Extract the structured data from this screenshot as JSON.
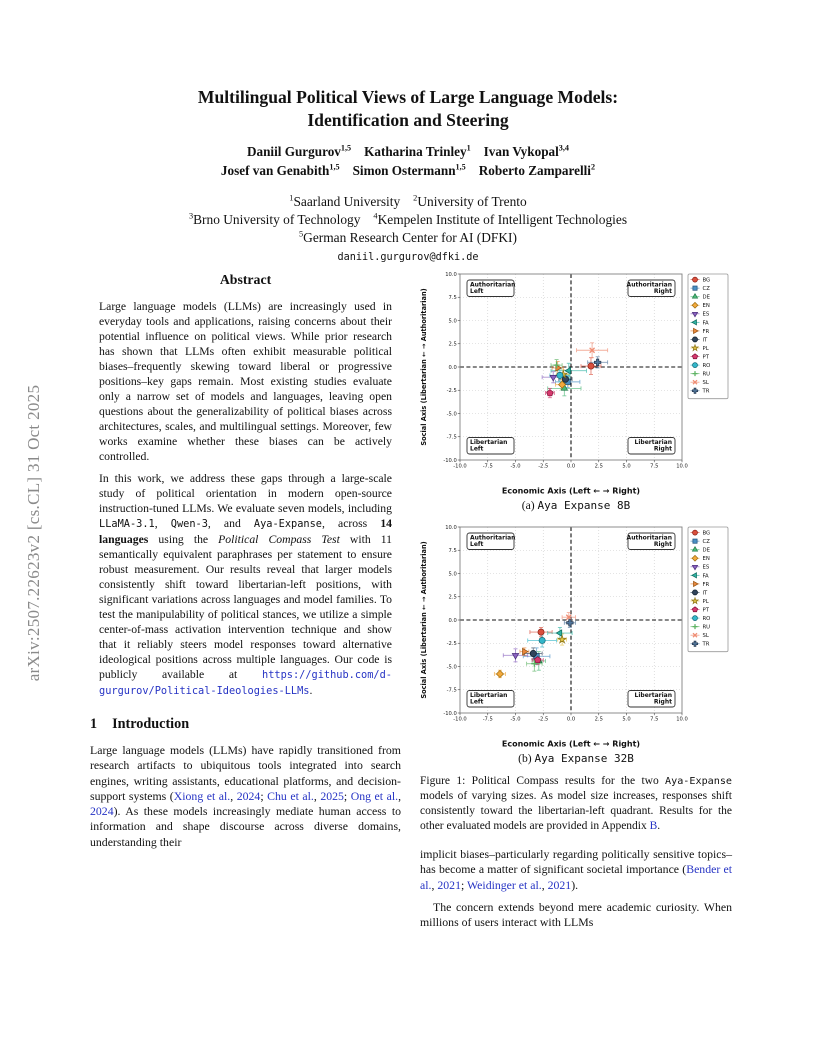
{
  "watermark": "arXiv:2507.22623v2  [cs.CL]  31 Oct 2025",
  "header": {
    "title_lines": [
      "Multilingual Political Views of Large Language Models:",
      "Identification and Steering"
    ],
    "author_rows": [
      [
        {
          "t": "Daniil Gurgurov",
          "s": "p"
        },
        {
          "t": "1,5",
          "s": "sup"
        },
        {
          "t": "",
          "s": "gap"
        },
        {
          "t": "Katharina Trinley",
          "s": "p"
        },
        {
          "t": "1",
          "s": "sup"
        },
        {
          "t": "",
          "s": "gap"
        },
        {
          "t": "Ivan Vykopal",
          "s": "p"
        },
        {
          "t": "3,4",
          "s": "sup"
        }
      ],
      [
        {
          "t": "Josef van Genabith",
          "s": "p"
        },
        {
          "t": "1,5",
          "s": "sup"
        },
        {
          "t": "",
          "s": "gap"
        },
        {
          "t": "Simon Ostermann",
          "s": "p"
        },
        {
          "t": "1,5",
          "s": "sup"
        },
        {
          "t": "",
          "s": "gap"
        },
        {
          "t": "Roberto Zamparelli",
          "s": "p"
        },
        {
          "t": "2",
          "s": "sup"
        }
      ]
    ],
    "affil_rows": [
      [
        {
          "t": "1",
          "s": "sup"
        },
        {
          "t": "Saarland University",
          "s": "p"
        },
        {
          "t": "",
          "s": "gap"
        },
        {
          "t": "2",
          "s": "sup"
        },
        {
          "t": "University of Trento",
          "s": "p"
        }
      ],
      [
        {
          "t": "3",
          "s": "sup"
        },
        {
          "t": "Brno University of Technology",
          "s": "p"
        },
        {
          "t": "",
          "s": "gap"
        },
        {
          "t": "4",
          "s": "sup"
        },
        {
          "t": "Kempelen Institute of Intelligent Technologies",
          "s": "p"
        }
      ],
      [
        {
          "t": "5",
          "s": "sup"
        },
        {
          "t": "German Research Center for AI (DFKI)",
          "s": "p"
        }
      ]
    ],
    "email": "daniil.gurgurov@dfki.de"
  },
  "left_column": {
    "abstract_heading": "Abstract",
    "abstract_paragraphs": [
      [
        {
          "t": "Large language models (LLMs) are increasingly used in everyday tools and applications, raising concerns about their potential influence on political views. While prior research has shown that LLMs often exhibit measurable political biases–frequently skewing toward liberal or progressive positions–key gaps remain. Most existing studies evaluate only a narrow set of models and languages, leaving open questions about the generalizability of political biases across architectures, scales, and multilingual settings. Moreover, few works examine whether these biases can be actively controlled.",
          "s": "p"
        }
      ],
      [
        {
          "t": "In this work, we address these gaps through a large-scale study of political orientation in modern open-source instruction-tuned LLMs. We evaluate seven models, including ",
          "s": "p"
        },
        {
          "t": "LLaMA-3.1",
          "s": "m"
        },
        {
          "t": ", ",
          "s": "p"
        },
        {
          "t": "Qwen-3",
          "s": "m"
        },
        {
          "t": ", and ",
          "s": "p"
        },
        {
          "t": "Aya-Expanse",
          "s": "m"
        },
        {
          "t": ", across ",
          "s": "p"
        },
        {
          "t": "14 languages",
          "s": "b"
        },
        {
          "t": " using the ",
          "s": "p"
        },
        {
          "t": "Political Compass Test",
          "s": "i"
        },
        {
          "t": " with 11 semantically equivalent paraphrases per statement to ensure robust measurement. Our results reveal that larger models consistently shift toward libertarian-left positions, with significant variations across languages and model families. To test the manipulability of political stances, we utilize a simple center-of-mass activation intervention technique and show that it reliably steers model responses toward alternative ideological positions across multiple languages. Our code is publicly available at ",
          "s": "p"
        },
        {
          "t": "https://github.com/d-gurgurov/Political-Ideologies-LLMs",
          "s": "ma"
        },
        {
          "t": ".",
          "s": "p"
        }
      ]
    ],
    "section1_number": "1",
    "section1_title": "Introduction",
    "intro_paragraphs": [
      [
        {
          "t": "Large language models (LLMs) have rapidly transitioned from research artifacts to ubiquitous tools integrated into search engines, writing assistants, educational platforms, and decision-support systems (",
          "s": "p"
        },
        {
          "t": "Xiong et al.",
          "s": "a"
        },
        {
          "t": ", ",
          "s": "p"
        },
        {
          "t": "2024",
          "s": "a"
        },
        {
          "t": "; ",
          "s": "p"
        },
        {
          "t": "Chu et al.",
          "s": "a"
        },
        {
          "t": ", ",
          "s": "p"
        },
        {
          "t": "2025",
          "s": "a"
        },
        {
          "t": "; ",
          "s": "p"
        },
        {
          "t": "Ong et al.",
          "s": "a"
        },
        {
          "t": ", ",
          "s": "p"
        },
        {
          "t": "2024",
          "s": "a"
        },
        {
          "t": "). As these models increasingly mediate human access to information and shape discourse across diverse domains, understanding their",
          "s": "p"
        }
      ]
    ]
  },
  "right_column": {
    "paragraphs": [
      [
        {
          "t": "implicit biases–particularly regarding politically sensitive topics–has become a matter of significant societal importance (",
          "s": "p"
        },
        {
          "t": "Bender et al.",
          "s": "a"
        },
        {
          "t": ", ",
          "s": "p"
        },
        {
          "t": "2021",
          "s": "a"
        },
        {
          "t": "; ",
          "s": "p"
        },
        {
          "t": "Weidinger et al.",
          "s": "a"
        },
        {
          "t": ", ",
          "s": "p"
        },
        {
          "t": "2021",
          "s": "a"
        },
        {
          "t": ").",
          "s": "p"
        }
      ],
      [
        {
          "t": "The concern extends beyond mere academic curiosity. When millions of users interact with LLMs",
          "s": "p"
        }
      ]
    ]
  },
  "figure": {
    "subcaption_a": [
      {
        "t": "(a) ",
        "s": "p"
      },
      {
        "t": "Aya Expanse 8B",
        "s": "m"
      }
    ],
    "subcaption_b": [
      {
        "t": "(b) ",
        "s": "p"
      },
      {
        "t": "Aya Expanse 32B",
        "s": "m"
      }
    ],
    "caption": [
      {
        "t": "Figure 1: Political Compass results for the two ",
        "s": "p"
      },
      {
        "t": "Aya-Expanse",
        "s": "m"
      },
      {
        "t": " models of varying sizes. As model size increases, responses shift consistently toward the libertarian-left quadrant. Results for the other evaluated models are provided in Appendix ",
        "s": "p"
      },
      {
        "t": "B",
        "s": "a"
      },
      {
        "t": ".",
        "s": "p"
      }
    ]
  },
  "chart_data": [
    {
      "type": "scatter",
      "name": "Aya Expanse 8B",
      "xlabel": "Economic Axis (Left ← → Right)",
      "ylabel": "Social Axis (Libertarian ← → Authoritarian)",
      "xlim": [
        -10,
        10
      ],
      "ylim": [
        -10,
        10
      ],
      "ticks": [
        -10,
        -7.5,
        -5,
        -2.5,
        0,
        2.5,
        5,
        7.5,
        10
      ],
      "grid": true,
      "legend_position": "right-outside",
      "quadrant_labels": [
        {
          "pos": "tl",
          "lines": [
            "Authoritarian",
            "Left"
          ]
        },
        {
          "pos": "tr",
          "lines": [
            "Authoritarian",
            "Right"
          ]
        },
        {
          "pos": "bl",
          "lines": [
            "Libertarian",
            "Left"
          ]
        },
        {
          "pos": "br",
          "lines": [
            "Libertarian",
            "Right"
          ]
        }
      ],
      "series": [
        {
          "label": "BG",
          "marker": "circle",
          "color": "#d94f3d",
          "edge": "#8c2016",
          "x": 1.8,
          "y": 0.1,
          "xerr": 0.9,
          "yerr": 0.9
        },
        {
          "label": "CZ",
          "marker": "square",
          "color": "#4a90c4",
          "edge": "#1d4f7a",
          "x": -0.3,
          "y": -1.6,
          "xerr": 1.1,
          "yerr": 0.6
        },
        {
          "label": "DE",
          "marker": "triangle-up",
          "color": "#4db878",
          "edge": "#1d7a45",
          "x": -0.6,
          "y": -2.3,
          "xerr": 1.5,
          "yerr": 0.8
        },
        {
          "label": "EN",
          "marker": "diamond",
          "color": "#f2a93d",
          "edge": "#9c6a0a",
          "x": -0.8,
          "y": -1.9,
          "xerr": 0.6,
          "yerr": 0.5
        },
        {
          "label": "ES",
          "marker": "triangle-down",
          "color": "#8a63c0",
          "edge": "#4a2d78",
          "x": -1.6,
          "y": -1.1,
          "xerr": 1.0,
          "yerr": 0.6
        },
        {
          "label": "FA",
          "marker": "triangle-left",
          "color": "#2fb3a3",
          "edge": "#0e685c",
          "x": -0.2,
          "y": -0.4,
          "xerr": 1.6,
          "yerr": 0.8
        },
        {
          "label": "FR",
          "marker": "triangle-right",
          "color": "#e8873c",
          "edge": "#94500e",
          "x": -1.2,
          "y": -0.1,
          "xerr": 0.5,
          "yerr": 0.7
        },
        {
          "label": "IT",
          "marker": "octagon",
          "color": "#31455c",
          "edge": "#10202e",
          "x": -0.5,
          "y": -1.3,
          "xerr": 0.6,
          "yerr": 0.5
        },
        {
          "label": "PL",
          "marker": "star",
          "color": "#e3c44a",
          "edge": "#8a7210",
          "x": -0.7,
          "y": -0.8,
          "xerr": 0.6,
          "yerr": 0.5
        },
        {
          "label": "PT",
          "marker": "pentagon",
          "color": "#d63a6e",
          "edge": "#801238",
          "x": -1.9,
          "y": -2.8,
          "xerr": 0.4,
          "yerr": 0.5
        },
        {
          "label": "RO",
          "marker": "circle",
          "color": "#33b6c9",
          "edge": "#0f6a78",
          "x": -1.0,
          "y": -0.9,
          "xerr": 0.9,
          "yerr": 0.7
        },
        {
          "label": "RU",
          "marker": "plus",
          "color": "#5fb465",
          "edge": "#2e7a34",
          "x": -1.3,
          "y": 0.2,
          "xerr": 0.5,
          "yerr": 0.6
        },
        {
          "label": "SL",
          "marker": "x",
          "color": "#ef8d73",
          "edge": "#b04a30",
          "x": 1.9,
          "y": 1.8,
          "xerr": 1.4,
          "yerr": 0.8
        },
        {
          "label": "TR",
          "marker": "plus-filled",
          "color": "#52779c",
          "edge": "#24364d",
          "x": 2.4,
          "y": 0.5,
          "xerr": 0.9,
          "yerr": 0.6
        }
      ]
    },
    {
      "type": "scatter",
      "name": "Aya Expanse 32B",
      "xlabel": "Economic Axis (Left ← → Right)",
      "ylabel": "Social Axis (Libertarian ← → Authoritarian)",
      "xlim": [
        -10,
        10
      ],
      "ylim": [
        -10,
        10
      ],
      "ticks": [
        -10,
        -7.5,
        -5,
        -2.5,
        0,
        2.5,
        5,
        7.5,
        10
      ],
      "grid": true,
      "legend_position": "right-outside",
      "quadrant_labels": [
        {
          "pos": "tl",
          "lines": [
            "Authoritarian",
            "Left"
          ]
        },
        {
          "pos": "tr",
          "lines": [
            "Authoritarian",
            "Right"
          ]
        },
        {
          "pos": "bl",
          "lines": [
            "Libertarian",
            "Left"
          ]
        },
        {
          "pos": "br",
          "lines": [
            "Libertarian",
            "Right"
          ]
        }
      ],
      "series": [
        {
          "label": "BG",
          "marker": "circle",
          "color": "#d94f3d",
          "edge": "#8c2016",
          "x": -2.7,
          "y": -1.3,
          "xerr": 1.0,
          "yerr": 0.5
        },
        {
          "label": "CZ",
          "marker": "square",
          "color": "#4a90c4",
          "edge": "#1d4f7a",
          "x": -3.1,
          "y": -3.9,
          "xerr": 1.2,
          "yerr": 0.9
        },
        {
          "label": "DE",
          "marker": "triangle-up",
          "color": "#4db878",
          "edge": "#1d7a45",
          "x": -2.9,
          "y": -4.4,
          "xerr": 0.6,
          "yerr": 1.0
        },
        {
          "label": "EN",
          "marker": "diamond",
          "color": "#f2a93d",
          "edge": "#9c6a0a",
          "x": -6.4,
          "y": -5.8,
          "xerr": 0.5,
          "yerr": 0.4
        },
        {
          "label": "ES",
          "marker": "triangle-down",
          "color": "#8a63c0",
          "edge": "#4a2d78",
          "x": -5.0,
          "y": -3.8,
          "xerr": 1.1,
          "yerr": 0.7
        },
        {
          "label": "FA",
          "marker": "triangle-left",
          "color": "#2fb3a3",
          "edge": "#0e685c",
          "x": -1.0,
          "y": -1.4,
          "xerr": 1.1,
          "yerr": 0.6
        },
        {
          "label": "FR",
          "marker": "triangle-right",
          "color": "#e8873c",
          "edge": "#94500e",
          "x": -4.2,
          "y": -3.4,
          "xerr": 0.4,
          "yerr": 0.4
        },
        {
          "label": "IT",
          "marker": "octagon",
          "color": "#31455c",
          "edge": "#10202e",
          "x": -3.4,
          "y": -3.6,
          "xerr": 0.8,
          "yerr": 0.6
        },
        {
          "label": "PL",
          "marker": "star",
          "color": "#e3c44a",
          "edge": "#8a7210",
          "x": -0.8,
          "y": -2.1,
          "xerr": 0.4,
          "yerr": 0.6
        },
        {
          "label": "PT",
          "marker": "pentagon",
          "color": "#d63a6e",
          "edge": "#801238",
          "x": -3.0,
          "y": -4.3,
          "xerr": 0.5,
          "yerr": 0.5
        },
        {
          "label": "RO",
          "marker": "circle",
          "color": "#33b6c9",
          "edge": "#0f6a78",
          "x": -2.6,
          "y": -2.2,
          "xerr": 1.3,
          "yerr": 0.7
        },
        {
          "label": "RU",
          "marker": "plus",
          "color": "#5fb465",
          "edge": "#2e7a34",
          "x": -3.3,
          "y": -4.7,
          "xerr": 0.7,
          "yerr": 0.8
        },
        {
          "label": "SL",
          "marker": "x",
          "color": "#ef8d73",
          "edge": "#b04a30",
          "x": -0.2,
          "y": 0.3,
          "xerr": 0.6,
          "yerr": 0.5
        },
        {
          "label": "TR",
          "marker": "plus-filled",
          "color": "#52779c",
          "edge": "#24364d",
          "x": -0.1,
          "y": -0.3,
          "xerr": 0.5,
          "yerr": 0.5
        }
      ]
    }
  ]
}
